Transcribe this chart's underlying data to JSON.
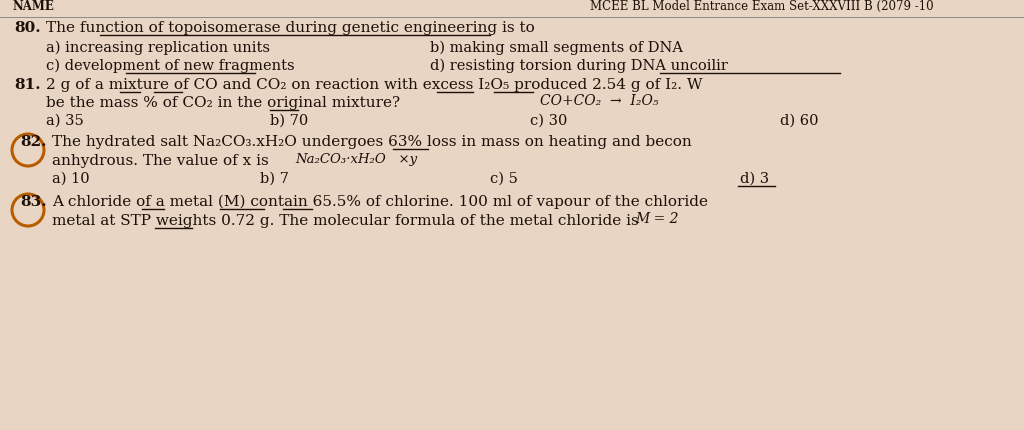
{
  "background_color": "#e8d5c4",
  "header_left": "NAME",
  "header_right": "MCEE BL Model Entrance Exam Set-XXXVIII B (2079 -10",
  "q80_num": "80.",
  "q80_text": "The function of topoisomerase during genetic engineering is to",
  "q80_a": "a) increasing replication units",
  "q80_b": "b) making small segments of DNA",
  "q80_c": "c) development of new fragments",
  "q80_d": "d) resisting torsion during DNA uncoilir",
  "q81_num": "81.",
  "q81_line1": "2 g of a mixture of CO and CO₂ on reaction with excess I₂O₅ produced 2.54 g of I₂. W",
  "q81_line2": "be the mass % of CO₂ in the original mixture?",
  "q81_annot": "CO+CO₂  →  I₂O₅",
  "q81_a": "a) 35",
  "q81_b": "b) 70",
  "q81_c": "c) 30",
  "q81_d": "d) 60",
  "q82_num": "82.",
  "q82_line1": "The hydrated salt Na₂CO₃.xH₂O undergoes 63% loss in mass on heating and becon",
  "q82_line2": "anhydrous. The value of x is",
  "q82_annot": "Na₂CO₃·xH₂O   ×y",
  "q82_a": "a) 10",
  "q82_b": "b) 7",
  "q82_c": "c) 5",
  "q82_d": "d) 3",
  "q83_num": "83.",
  "q83_line1": "A chloride of a metal (M) contain 65.5% of chlorine. 100 ml of vapour of the chloride",
  "q83_line2": "metal at STP weights 0.72 g. The molecular formula of the metal chloride is",
  "q83_annot": "M = 2",
  "text_color": "#1c1008",
  "header_color": "#1c1008",
  "circle_color": "#b85c00",
  "font_size_header": 8.5,
  "font_size_qnum": 11,
  "font_size_body": 11,
  "font_size_opts": 10.5
}
